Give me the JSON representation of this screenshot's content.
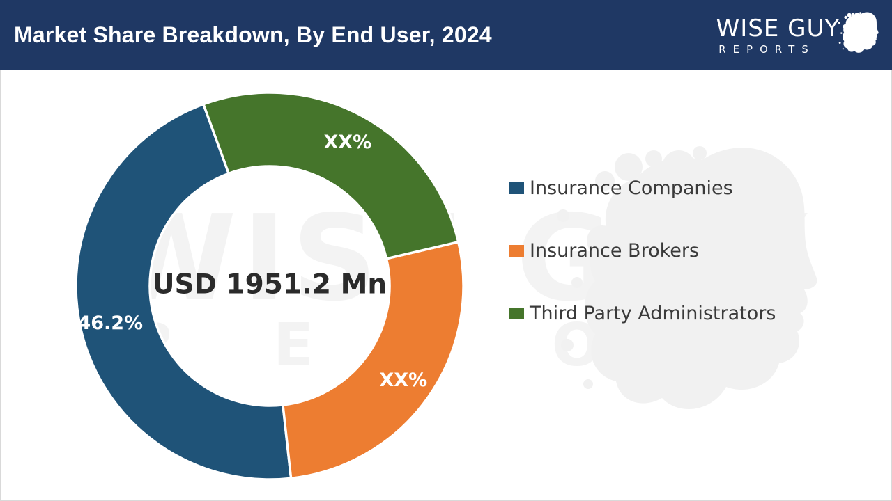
{
  "header": {
    "title": "Market Share Breakdown, By End User, 2024",
    "logo_line1": "WISE GUY",
    "logo_line2": "REPORTS",
    "background_color": "#1f3864"
  },
  "watermark": {
    "line1": "WISE GUY",
    "line2": "R E P O R T S"
  },
  "chart_data": {
    "type": "pie",
    "subtype": "donut",
    "title": "Market Share Breakdown, By End User, 2024",
    "center_label": "USD 1951.2 Mn",
    "start_angle_deg_from_north": -20,
    "direction": "counterclockwise",
    "inner_radius_ratio": 0.62,
    "legend_position": "right",
    "segments": [
      {
        "name": "Insurance Companies",
        "label": "46.2%",
        "value": 46.2,
        "color": "#1f5378"
      },
      {
        "name": "Insurance Brokers",
        "label": "XX%",
        "value": 26.9,
        "color": "#ed7d31"
      },
      {
        "name": "Third Party Administrators",
        "label": "XX%",
        "value": 26.9,
        "color": "#45752b"
      }
    ]
  },
  "legend": {
    "items": [
      {
        "label": "Insurance Companies",
        "color": "#1f5378"
      },
      {
        "label": "Insurance Brokers",
        "color": "#ed7d31"
      },
      {
        "label": "Third Party Administrators",
        "color": "#45752b"
      }
    ]
  }
}
